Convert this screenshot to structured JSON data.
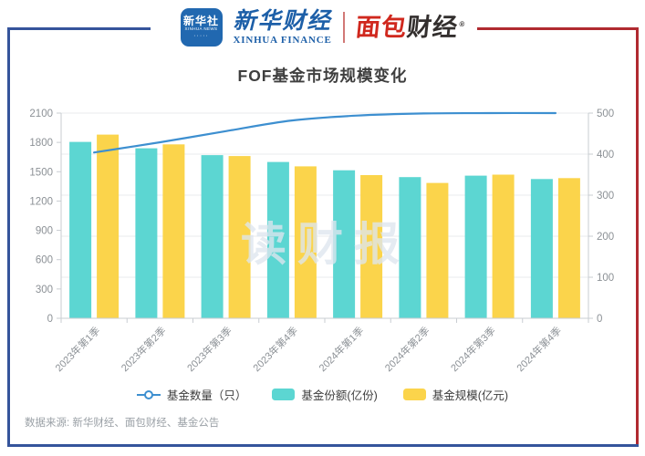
{
  "header": {
    "xinhua_agency": {
      "name": "新华社",
      "subtitle": "XINHUA NEWS",
      "dots": "·····"
    },
    "xinhua_finance": {
      "cn": "新华财经",
      "en": "XINHUA FINANCE"
    },
    "bread_finance": {
      "cn_red": "面包",
      "cn_dark": "财经",
      "reg_mark": "®"
    }
  },
  "title": "FOF基金市场规模变化",
  "watermark": "读财报",
  "footer": {
    "source": "数据来源: 新华财经、面包财经、基金公告"
  },
  "colors": {
    "bar_fund_share": "#5CD6D2",
    "bar_fund_scale": "#FBD44B",
    "line_fund_count": "#3D8FD0",
    "frame_blue": "#35549B",
    "frame_red": "#B02A30",
    "axis_text": "#8C9196",
    "grid_line": "#E9EBEE",
    "axis_line": "#C9CDD2",
    "title_text": "#3F3F3F",
    "brand_blue": "#1D5FA8",
    "brand_icon_blue": "#2168B0",
    "brand_red": "#D0281E",
    "brand_dark": "#332F2E"
  },
  "chart_data": {
    "type": "bar+line",
    "categories": [
      "2023年第1季",
      "2023年第2季",
      "2023年第3季",
      "2023年第4季",
      "2024年第1季",
      "2024年第2季",
      "2024年第3季",
      "2024年第4季"
    ],
    "series": [
      {
        "name": "基金数量（只）",
        "type": "line",
        "axis": "right",
        "color": "#3D8FD0",
        "values": [
          404,
          429,
          456,
          482,
          494,
          499,
          500,
          500
        ]
      },
      {
        "name": "基金份额(亿份)",
        "type": "bar",
        "axis": "left",
        "color": "#5CD6D2",
        "values": [
          1805,
          1740,
          1670,
          1600,
          1515,
          1445,
          1460,
          1425
        ]
      },
      {
        "name": "基金规模(亿元)",
        "type": "bar",
        "axis": "left",
        "color": "#FBD44B",
        "values": [
          1880,
          1780,
          1660,
          1555,
          1465,
          1385,
          1470,
          1435
        ]
      }
    ],
    "left_axis": {
      "min": 0,
      "max": 2100,
      "ticks": [
        0,
        300,
        600,
        900,
        1200,
        1500,
        1800,
        2100
      ]
    },
    "right_axis": {
      "min": 0,
      "max": 500,
      "ticks": [
        0,
        100,
        200,
        300,
        400,
        500
      ]
    },
    "grid": true,
    "legend_position": "bottom",
    "x_label_rotation": -45
  }
}
